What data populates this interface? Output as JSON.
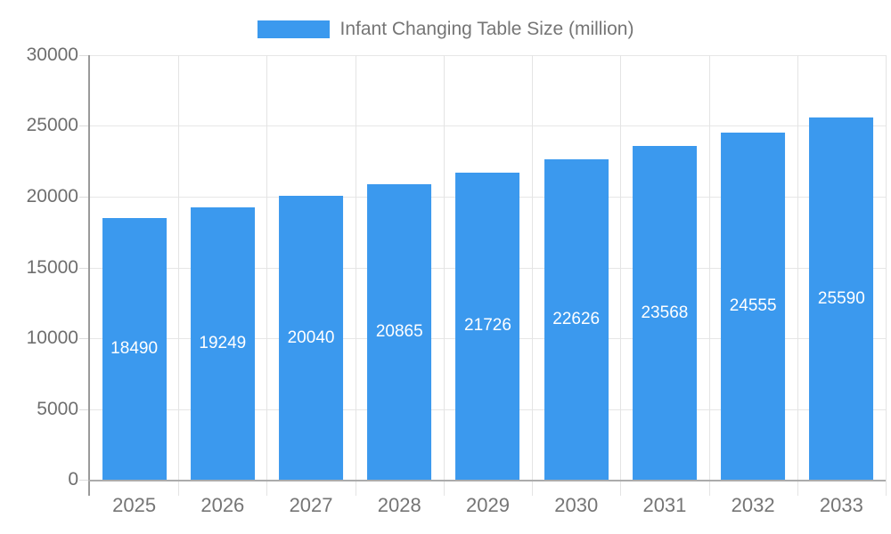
{
  "legend": {
    "label": "Infant Changing Table Size (million)",
    "swatch_color": "#3b99ee"
  },
  "chart_data": {
    "type": "bar",
    "title": "Infant Changing Table Size (million)",
    "categories": [
      "2025",
      "2026",
      "2027",
      "2028",
      "2029",
      "2030",
      "2031",
      "2032",
      "2033"
    ],
    "values": [
      18490,
      19249,
      20040,
      20865,
      21726,
      22626,
      23568,
      24555,
      25590
    ],
    "xlabel": "",
    "ylabel": "",
    "ylim": [
      0,
      30000
    ],
    "yticks": [
      0,
      5000,
      10000,
      15000,
      20000,
      25000,
      30000
    ],
    "grid": true,
    "legend_position": "top-center",
    "bar_color": "#3b99ee",
    "value_label_color": "#ffffff",
    "axis_text_color": "#757575",
    "gridline_color": "#e6e6e6",
    "axis_line_color": "#9a9a9a"
  }
}
